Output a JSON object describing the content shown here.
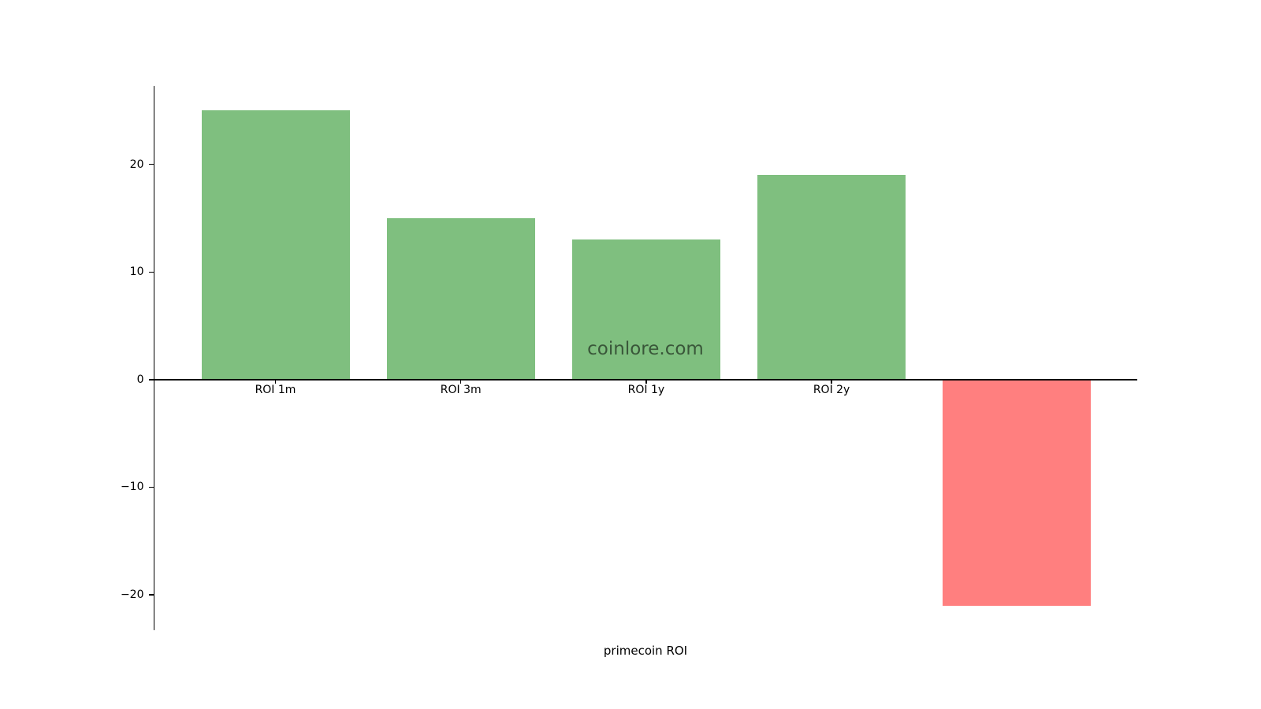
{
  "chart_data": {
    "type": "bar",
    "title": "",
    "xlabel": "primecoin ROI",
    "ylabel": "",
    "categories": [
      "ROI 1m",
      "ROI 3m",
      "ROI 1y",
      "ROI 2y",
      ""
    ],
    "values": [
      25,
      15,
      13,
      19,
      -21
    ],
    "series": [
      {
        "name": "primecoin ROI",
        "values": [
          25,
          15,
          13,
          19,
          -21
        ]
      }
    ],
    "positive_color": "#7fbf7f",
    "negative_color": "#ff7f7f",
    "axis_color": "#000000",
    "background_color": "#ffffff",
    "ylim": [
      -23.3,
      27.3
    ],
    "yticks": [
      20,
      10,
      0,
      -10,
      -20
    ],
    "grid": false,
    "legend": null,
    "watermark": "coinlore.com"
  }
}
